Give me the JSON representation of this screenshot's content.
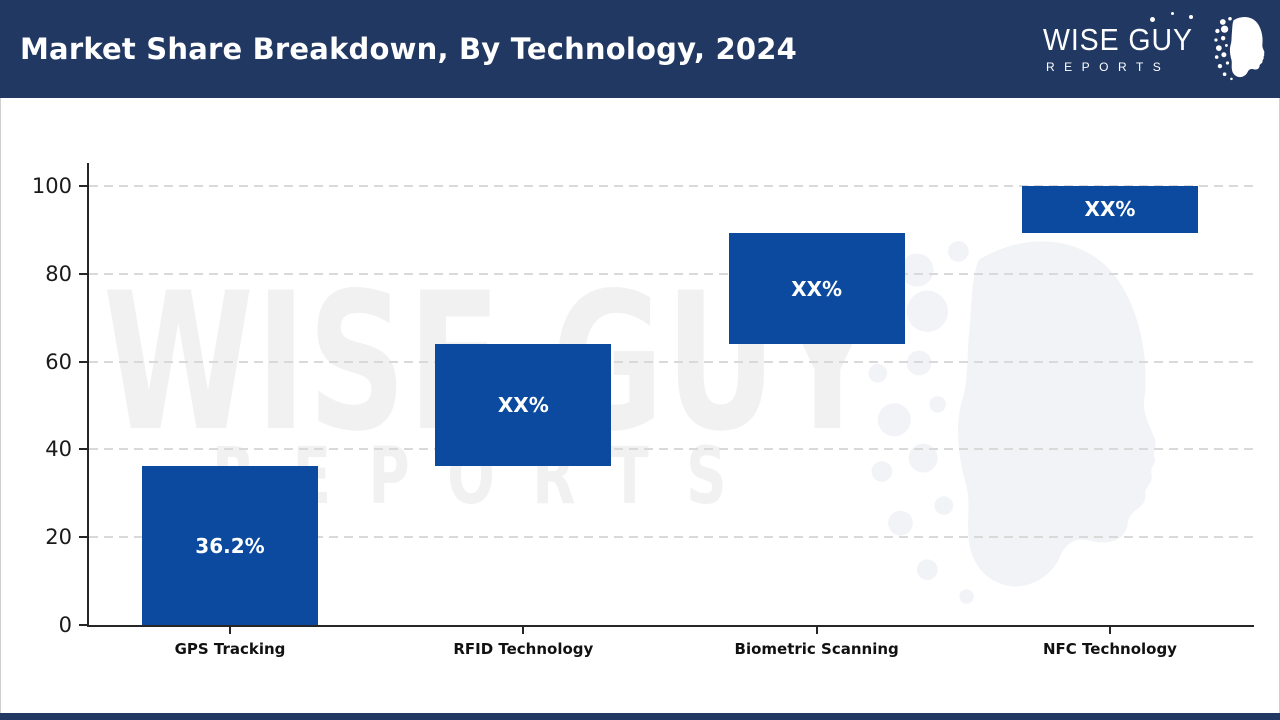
{
  "header": {
    "title": "Market Share Breakdown, By Technology, 2024",
    "logo": {
      "line1": "WISE GUY",
      "line2": "REPORTS"
    }
  },
  "watermark": {
    "line1": "WISE GUY",
    "line2": "REPORTS"
  },
  "colors": {
    "header_bg": "#213863",
    "bar": "#0b4a9e",
    "axis": "#262626",
    "grid": "#d9d9d9",
    "watermark": "#f1f1f1",
    "bar_label": "#ffffff"
  },
  "chart_data": {
    "type": "bar",
    "subtype": "waterfall",
    "title": "Market Share Breakdown, By Technology, 2024",
    "categories": [
      "GPS Tracking",
      "RFID Technology",
      "Biometric Scanning",
      "NFC Technology"
    ],
    "segments": [
      {
        "label": "GPS Tracking",
        "start": 0,
        "end": 36.2,
        "display": "36.2%"
      },
      {
        "label": "RFID Technology",
        "start": 36.2,
        "end": 63.9,
        "display": "XX%"
      },
      {
        "label": "Biometric Scanning",
        "start": 63.9,
        "end": 89.4,
        "display": "XX%"
      },
      {
        "label": "NFC Technology",
        "start": 89.4,
        "end": 100,
        "display": "XX%"
      }
    ],
    "ylim": [
      0,
      105
    ],
    "yticks": [
      0,
      20,
      40,
      60,
      80,
      100
    ],
    "xlabel": "",
    "ylabel": "",
    "grid": "horizontal-dashed",
    "legend": "none"
  }
}
